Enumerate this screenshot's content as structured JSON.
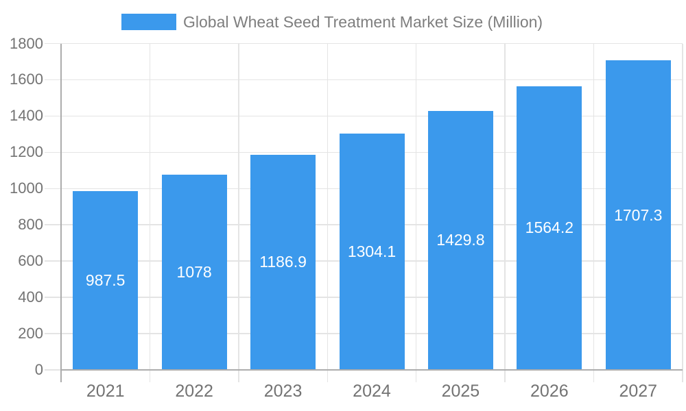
{
  "chart_data": {
    "type": "bar",
    "title": "Global Wheat Seed Treatment Market Size (Million)",
    "categories": [
      "2021",
      "2022",
      "2023",
      "2024",
      "2025",
      "2026",
      "2027"
    ],
    "values": [
      987.5,
      1078,
      1186.9,
      1304.1,
      1429.8,
      1564.2,
      1707.3
    ],
    "value_labels": [
      "987.5",
      "1078",
      "1186.9",
      "1304.1",
      "1429.8",
      "1564.2",
      "1707.3"
    ],
    "xlabel": "",
    "ylabel": "",
    "ylim": [
      0,
      1800
    ],
    "ytick_step": 200,
    "ytick_labels": [
      "0",
      "200",
      "400",
      "600",
      "800",
      "1000",
      "1200",
      "1400",
      "1600",
      "1800"
    ],
    "grid": true,
    "legend_position": "top-center",
    "bar_color": "#3B99EC",
    "bar_label_color": "#FFFFFF",
    "grid_color": "#E4E4E4",
    "axis_color": "#ACACAC",
    "tick_label_color": "#737373"
  }
}
